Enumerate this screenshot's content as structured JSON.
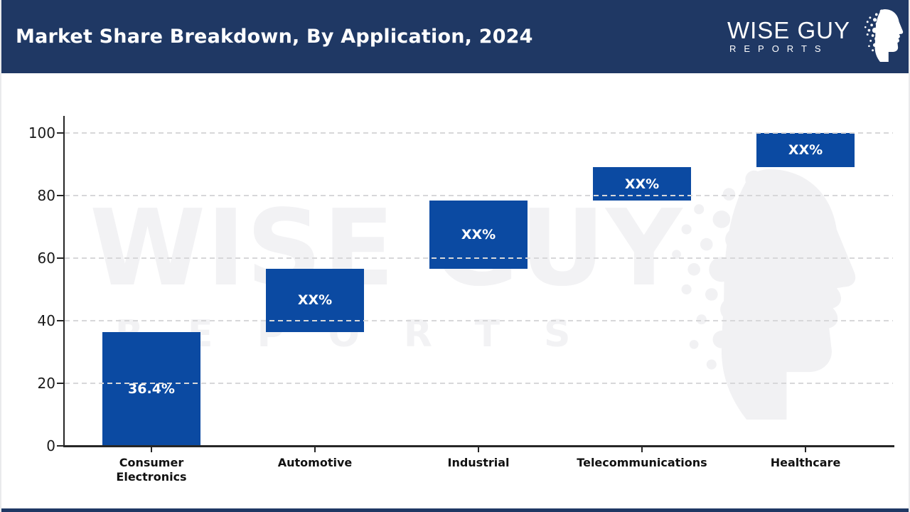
{
  "header": {
    "title": "Market Share Breakdown, By Application, 2024",
    "logo": {
      "brand": "WISE GUY",
      "sub": "REPORTS"
    }
  },
  "watermark": {
    "brand": "WISE GUY",
    "sub": "REPORTS"
  },
  "chart_data": {
    "type": "bar",
    "subtype": "waterfall",
    "title": "Market Share Breakdown, By Application, 2024",
    "categories": [
      "Consumer\nElectronics",
      "Automotive",
      "Industrial",
      "Telecommunications",
      "Healthcare"
    ],
    "segments": [
      {
        "category": "Consumer Electronics",
        "start": 0,
        "end": 36.4,
        "label": "36.4%"
      },
      {
        "category": "Automotive",
        "start": 36.4,
        "end": 56.6,
        "label": "XX%"
      },
      {
        "category": "Industrial",
        "start": 56.6,
        "end": 78.3,
        "label": "XX%"
      },
      {
        "category": "Telecommunications",
        "start": 78.3,
        "end": 89.0,
        "label": "XX%"
      },
      {
        "category": "Healthcare",
        "start": 89.0,
        "end": 100.0,
        "label": "XX%"
      }
    ],
    "y_ticks": [
      0,
      20,
      40,
      60,
      80,
      100
    ],
    "ylim": [
      0,
      104
    ],
    "xlabel": "",
    "ylabel": "",
    "grid": "horizontal-dashed",
    "legend": "none",
    "bar_color": "#0b4aa2",
    "bar_label_color": "#ffffff"
  },
  "colors": {
    "header_bg": "#1f3864",
    "footer_bg": "#1f3864",
    "bar_blue": "#0b4aa2",
    "axis": "#262626",
    "grid": "#d7d7d9",
    "tick_text": "#1a1a1a",
    "watermark": "#f2f2f4"
  }
}
